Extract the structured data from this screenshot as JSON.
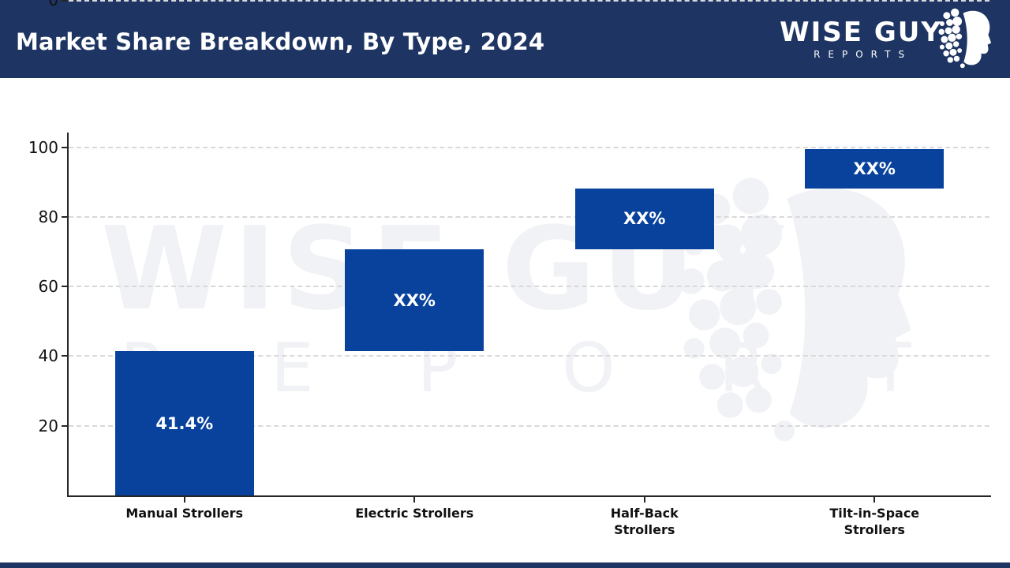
{
  "header": {
    "title": "Market Share Breakdown, By Type, 2024",
    "color_navy": "#1e3563",
    "logo": {
      "line1": "WISE GUY",
      "line2": "REPORTS"
    }
  },
  "watermark": {
    "line1": "WISE GUY",
    "line2": "R E P O R T S"
  },
  "chart_data": {
    "type": "bar",
    "subtype": "waterfall",
    "title": "Market Share Breakdown, By Type, 2024",
    "categories": [
      "Manual Strollers",
      "Electric Strollers",
      "Half-Back Strollers",
      "Tilt-in-Space Strollers"
    ],
    "segments": [
      {
        "category": "Manual Strollers",
        "category_lines": [
          "Manual Strollers"
        ],
        "start": 0,
        "end": 41.4,
        "value": 41.4,
        "label": "41.4%"
      },
      {
        "category": "Electric Strollers",
        "category_lines": [
          "Electric Strollers"
        ],
        "start": 41.4,
        "end": 70.7,
        "value": 29.3,
        "label": "XX%"
      },
      {
        "category": "Half-Back Strollers",
        "category_lines": [
          "Half-Back",
          "Strollers"
        ],
        "start": 70.7,
        "end": 88.1,
        "value": 17.4,
        "label": "XX%"
      },
      {
        "category": "Tilt-in-Space Strollers",
        "category_lines": [
          "Tilt-in-Space",
          "Strollers"
        ],
        "start": 88.1,
        "end": 99.5,
        "value": 11.4,
        "label": "XX%"
      }
    ],
    "ylabel": "",
    "xlabel": "",
    "ylim": [
      0,
      105
    ],
    "yticks": [
      0,
      20,
      40,
      60,
      80,
      100
    ],
    "grid": "horizontal-dashed",
    "legend": "none",
    "bar_color": "#08429c",
    "bar_label_color": "#ffffff",
    "axis_color": "#262626",
    "gridline_color": "#d9d9d9"
  }
}
